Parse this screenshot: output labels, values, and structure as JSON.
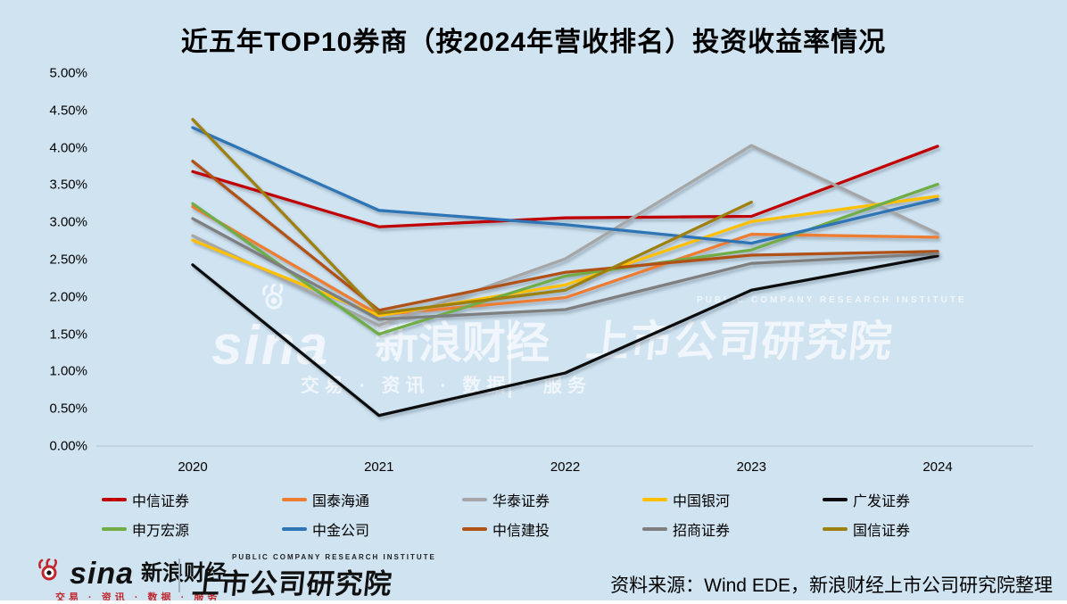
{
  "title": "近五年TOP10券商（按2024年营收排名）投资收益率情况",
  "chart_data": {
    "type": "line",
    "title": "近五年TOP10券商（按2024年营收排名）投资收益率情况",
    "xlabel": "",
    "ylabel": "",
    "x_labels": [
      "2020",
      "2021",
      "2022",
      "2023",
      "2024"
    ],
    "y_tick_labels": [
      "5.00%",
      "4.50%",
      "4.00%",
      "3.50%",
      "3.00%",
      "2.50%",
      "2.00%",
      "1.50%",
      "1.00%",
      "0.50%",
      "0.00%"
    ],
    "ylim": [
      0,
      5
    ],
    "unit": "percent",
    "grid": "off",
    "legend_position": "bottom",
    "series": [
      {
        "name": "中信证券",
        "color": "#C00000",
        "values": [
          3.68,
          2.94,
          3.06,
          3.08,
          4.02
        ]
      },
      {
        "name": "国泰海通",
        "color": "#ED7D31",
        "values": [
          3.21,
          1.76,
          1.99,
          2.84,
          2.8
        ]
      },
      {
        "name": "华泰证券",
        "color": "#A6A6A6",
        "values": [
          2.82,
          1.62,
          2.51,
          4.03,
          2.85
        ]
      },
      {
        "name": "中国银河",
        "color": "#FFC000",
        "values": [
          2.76,
          1.75,
          2.16,
          3.01,
          3.35
        ]
      },
      {
        "name": "广发证券",
        "color": "#0D0D0D",
        "values": [
          2.43,
          0.41,
          0.98,
          2.09,
          2.55
        ]
      },
      {
        "name": "申万宏源",
        "color": "#70AD47",
        "values": [
          3.25,
          1.5,
          2.28,
          2.63,
          3.51
        ]
      },
      {
        "name": "中金公司",
        "color": "#2E75B6",
        "values": [
          4.27,
          3.16,
          2.97,
          2.72,
          3.31
        ]
      },
      {
        "name": "中信建投",
        "color": "#B05116",
        "values": [
          3.82,
          1.82,
          2.33,
          2.56,
          2.61
        ]
      },
      {
        "name": "招商证券",
        "color": "#7F7F7F",
        "values": [
          3.05,
          1.7,
          1.83,
          2.45,
          2.58
        ]
      },
      {
        "name": "国信证券",
        "color": "#9E8010",
        "values": [
          4.38,
          1.78,
          2.09,
          3.27,
          null
        ]
      }
    ]
  },
  "watermark": {
    "brand": "sina",
    "brand_cn": "新浪财经",
    "tagline": "交易 · 资讯 · 数据 · 服务",
    "institute_en": "PUBLIC COMPANY RESEARCH INSTITUTE",
    "institute": "上市公司研究院"
  },
  "footer": {
    "brand": "sina",
    "brand_cn": "新浪财经",
    "tagline": "交易 · 资讯 · 数据 · 服务",
    "institute_en": "PUBLIC COMPANY RESEARCH INSTITUTE",
    "institute": "上市公司研究院",
    "source": "资料来源：Wind EDE，新浪财经上市公司研究院整理"
  },
  "colors": {
    "background": "#cfe3f1",
    "axis_line": "#b9c7d6",
    "sina_red": "#c2272d"
  }
}
